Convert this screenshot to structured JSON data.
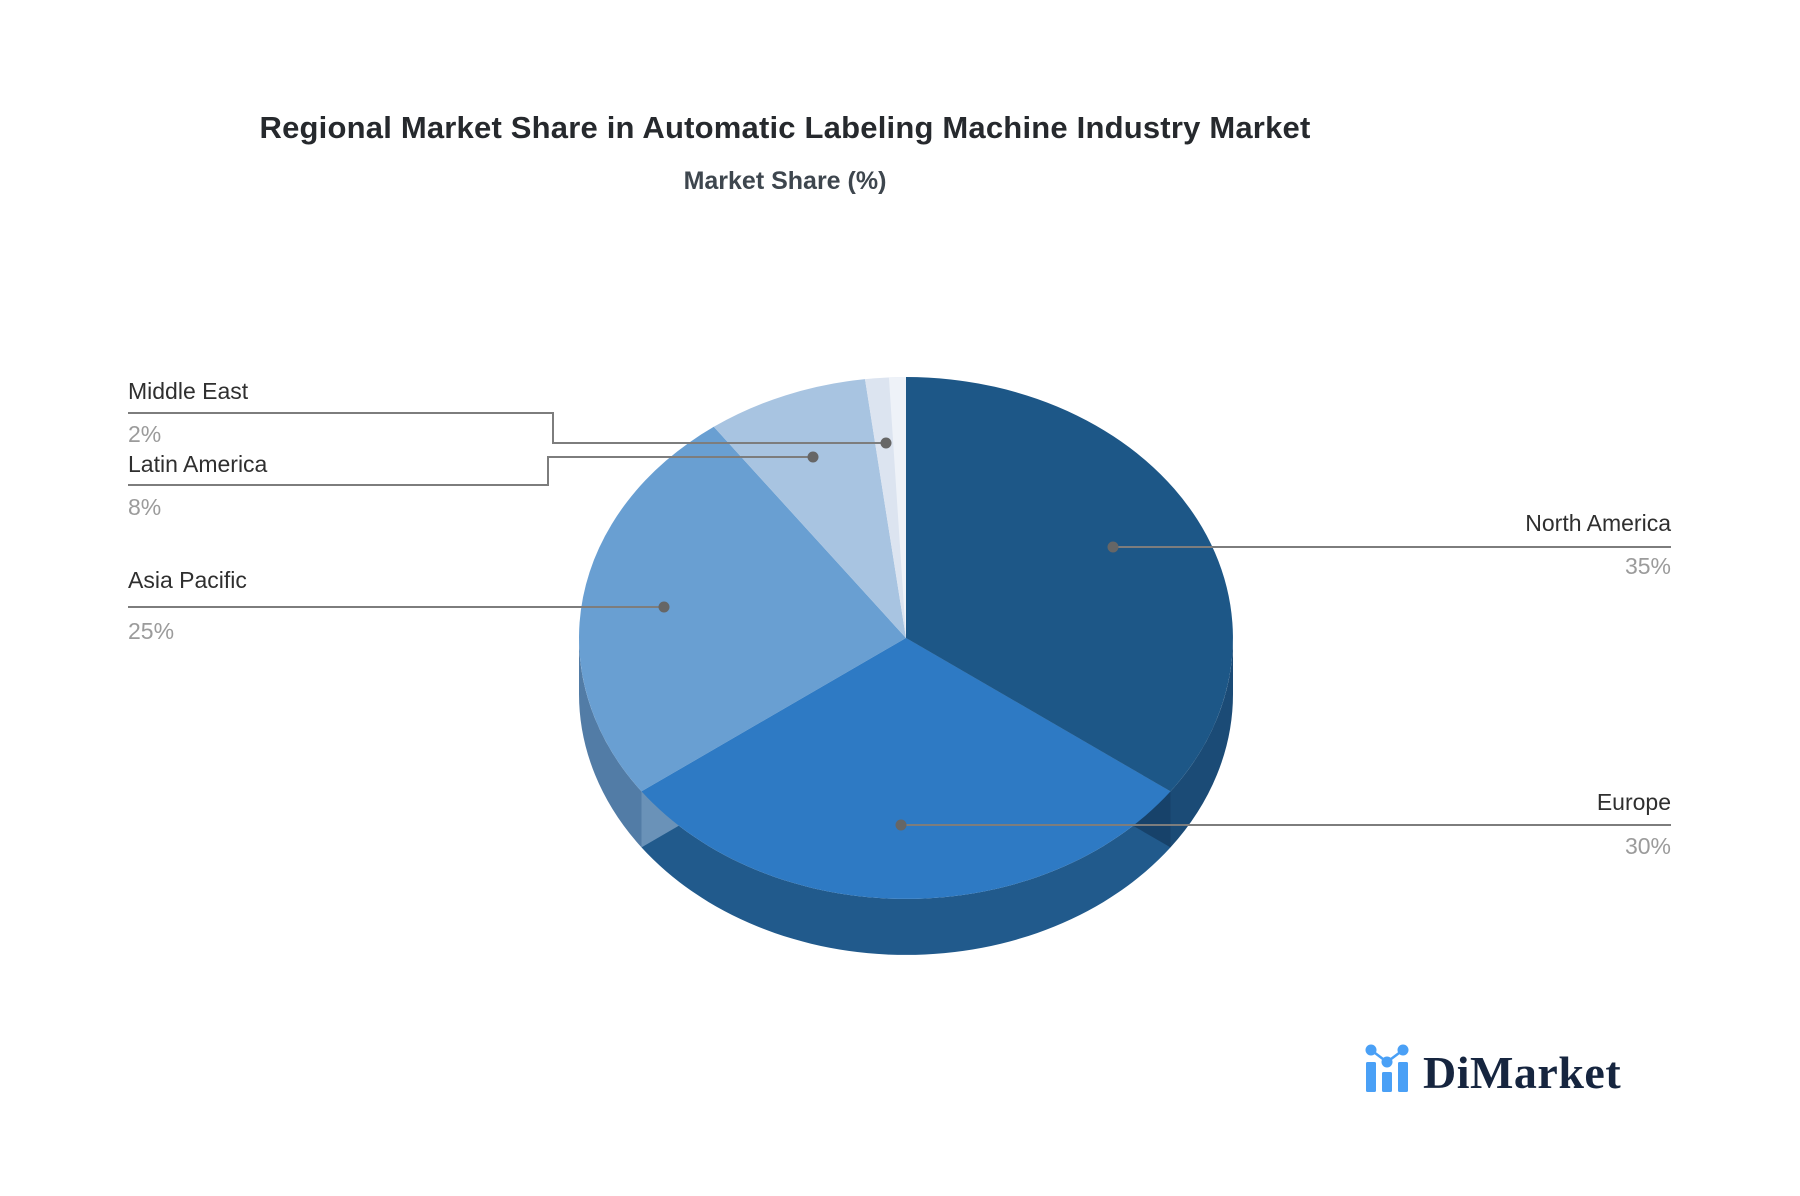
{
  "page": {
    "background": "#ffffff"
  },
  "header": {
    "title": "Regional Market Share in Automatic Labeling Machine Industry Market",
    "subtitle": "Market Share (%)"
  },
  "chart_data": {
    "type": "pie",
    "style": "3d",
    "title": "Regional Market Share in Automatic Labeling Machine Industry Market",
    "subtitle": "Market Share (%)",
    "unit": "%",
    "legend": "none (callout labels with leader lines)",
    "categories": [
      "North America",
      "Europe",
      "Asia Pacific",
      "Latin America",
      "Middle East"
    ],
    "values": [
      35,
      30,
      25,
      8,
      2
    ],
    "labels": [
      "35%",
      "30%",
      "25%",
      "8%",
      "2%"
    ],
    "colors": [
      "#1d5787",
      "#2e7ac4",
      "#699fd2",
      "#a8c4e1",
      "#dce4f0"
    ],
    "start_angle": "12 o'clock",
    "direction": "clockwise"
  },
  "brand": {
    "name": "DiMarket",
    "logo_icon": "bar-chart-trend-icon",
    "icon_color": "#4aa0f6",
    "text_color": "#16253f"
  }
}
